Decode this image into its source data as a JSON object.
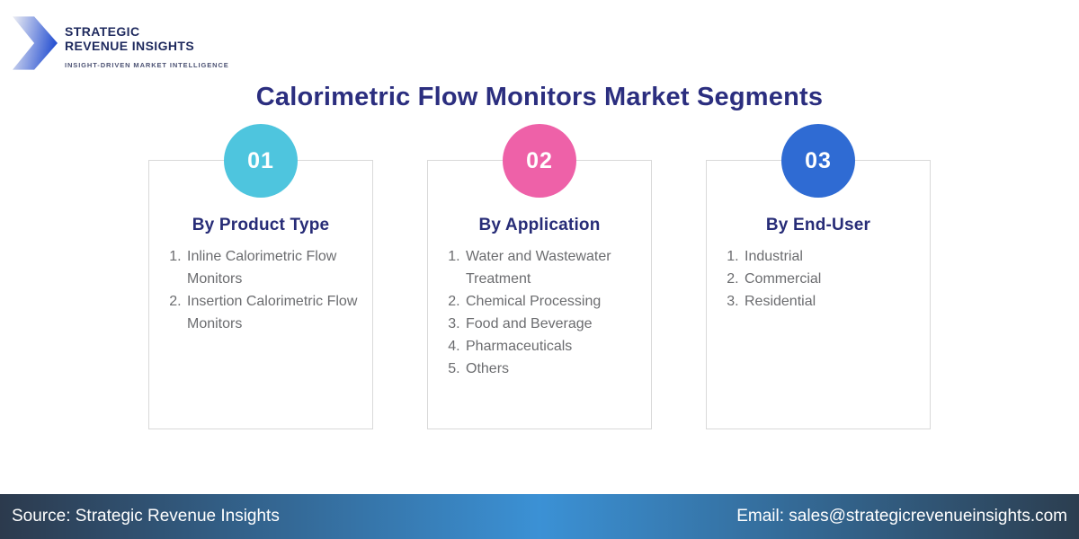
{
  "logo": {
    "line1": "STRATEGIC",
    "line2": "REVENUE INSIGHTS",
    "tagline": "INSIGHT-DRIVEN MARKET INTELLIGENCE",
    "chevron_icon": "chevron-right"
  },
  "title": "Calorimetric Flow Monitors Market Segments",
  "cards": [
    {
      "number": "01",
      "accent_color": "#4ec5de",
      "heading": "By Product Type",
      "items": [
        "Inline Calorimetric Flow Monitors",
        "Insertion Calorimetric Flow Monitors"
      ]
    },
    {
      "number": "02",
      "accent_color": "#ee61a8",
      "heading": "By Application",
      "items": [
        "Water and Wastewater Treatment",
        "Chemical Processing",
        "Food and Beverage",
        "Pharmaceuticals",
        "Others"
      ]
    },
    {
      "number": "03",
      "accent_color": "#2f6bd3",
      "heading": "By End-User",
      "items": [
        "Industrial",
        "Commercial",
        "Residential"
      ]
    }
  ],
  "footer": {
    "source": "Source: Strategic Revenue Insights",
    "email": "Email: sales@strategicrevenueinsights.com"
  },
  "colors": {
    "title_navy": "#2b2e7f",
    "heading_navy": "#272c77",
    "list_gray": "#6b6c6f",
    "card_border": "#d9d9d9",
    "footer_dark": "#2c3e50",
    "footer_blue": "#3b91d5",
    "logo_navy": "#1f2a5e",
    "logo_blue": "#2c55d2"
  }
}
